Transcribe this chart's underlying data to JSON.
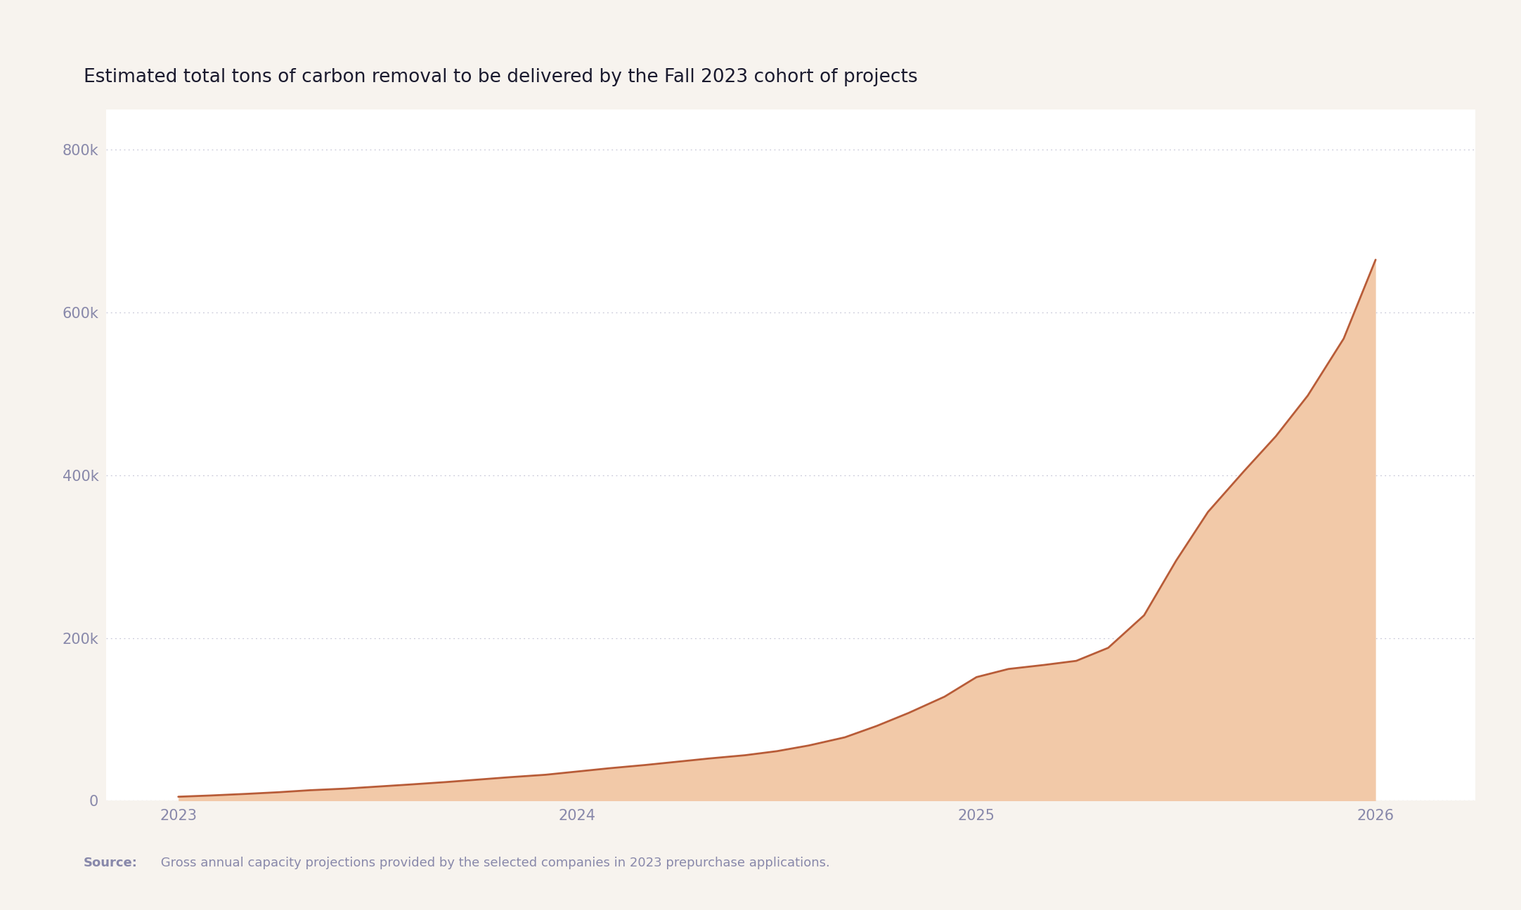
{
  "title": "Estimated total tons of carbon removal to be delivered by the Fall 2023 cohort of projects",
  "background_color": "#f7f3ee",
  "plot_bg_color": "#ffffff",
  "line_color": "#b85c38",
  "fill_color": "#f2c9a8",
  "fill_alpha": 1.0,
  "x_values": [
    2023.0,
    2023.08,
    2023.17,
    2023.25,
    2023.33,
    2023.42,
    2023.5,
    2023.58,
    2023.67,
    2023.75,
    2023.83,
    2023.92,
    2024.0,
    2024.08,
    2024.17,
    2024.25,
    2024.33,
    2024.42,
    2024.5,
    2024.58,
    2024.67,
    2024.75,
    2024.83,
    2024.92,
    2025.0,
    2025.08,
    2025.17,
    2025.25,
    2025.33,
    2025.42,
    2025.5,
    2025.58,
    2025.67,
    2025.75,
    2025.83,
    2025.92,
    2026.0
  ],
  "y_values": [
    5000,
    6500,
    8500,
    10500,
    13000,
    15000,
    17500,
    20000,
    23000,
    26000,
    29000,
    32000,
    36000,
    40000,
    44000,
    48000,
    52000,
    56000,
    61000,
    68000,
    78000,
    92000,
    108000,
    128000,
    152000,
    162000,
    167000,
    172000,
    188000,
    228000,
    295000,
    355000,
    405000,
    448000,
    498000,
    568000,
    665000
  ],
  "ytick_values": [
    0,
    200000,
    400000,
    600000,
    800000
  ],
  "ytick_labels": [
    "0",
    "200k",
    "400k",
    "600k",
    "800k"
  ],
  "xtick_values": [
    2023,
    2024,
    2025,
    2026
  ],
  "xtick_labels": [
    "2023",
    "2024",
    "2025",
    "2026"
  ],
  "ylim": [
    0,
    850000
  ],
  "xlim": [
    2022.82,
    2026.25
  ],
  "title_fontsize": 19,
  "tick_fontsize": 15,
  "source_fontsize": 13,
  "title_color": "#1a1a2e",
  "tick_color": "#8888aa",
  "grid_color": "#c8c8d8",
  "source_bold": "Source:",
  "source_normal": " Gross annual capacity projections provided by the selected companies in 2023 prepurchase applications."
}
